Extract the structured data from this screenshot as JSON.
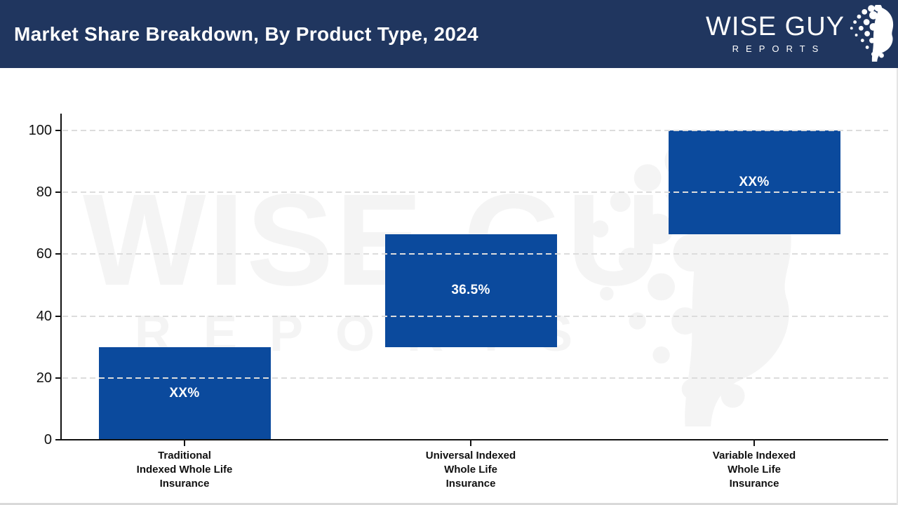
{
  "header": {
    "title": "Market Share Breakdown, By Product Type, 2024",
    "background_color": "#20365f",
    "logo": {
      "name_line": "WISE GUY",
      "sub_line": "REPORTS"
    }
  },
  "watermark": {
    "name_line": "WISE GUY",
    "sub_line": "REPORTS"
  },
  "chart_data": {
    "type": "bar",
    "subtype": "waterfall",
    "title": "Market Share Breakdown, By Product Type, 2024",
    "categories": [
      [
        "Traditional",
        "Indexed Whole Life",
        "Insurance"
      ],
      [
        "Universal Indexed",
        "Whole Life",
        "Insurance"
      ],
      [
        "Variable Indexed",
        "Whole Life",
        "Insurance"
      ]
    ],
    "segments": [
      {
        "start": 0,
        "end": 30,
        "label": "XX%"
      },
      {
        "start": 30,
        "end": 66.5,
        "label": "36.5%"
      },
      {
        "start": 66.5,
        "end": 100,
        "label": "XX%"
      }
    ],
    "ylim": [
      0,
      100
    ],
    "yticks": [
      0,
      20,
      40,
      60,
      80,
      100
    ],
    "grid": {
      "horizontal": true,
      "style": "dashed",
      "color": "#dcdcdc"
    },
    "bar_color": "#0b4a9d",
    "axis_color": "#111111",
    "legend": "none"
  }
}
